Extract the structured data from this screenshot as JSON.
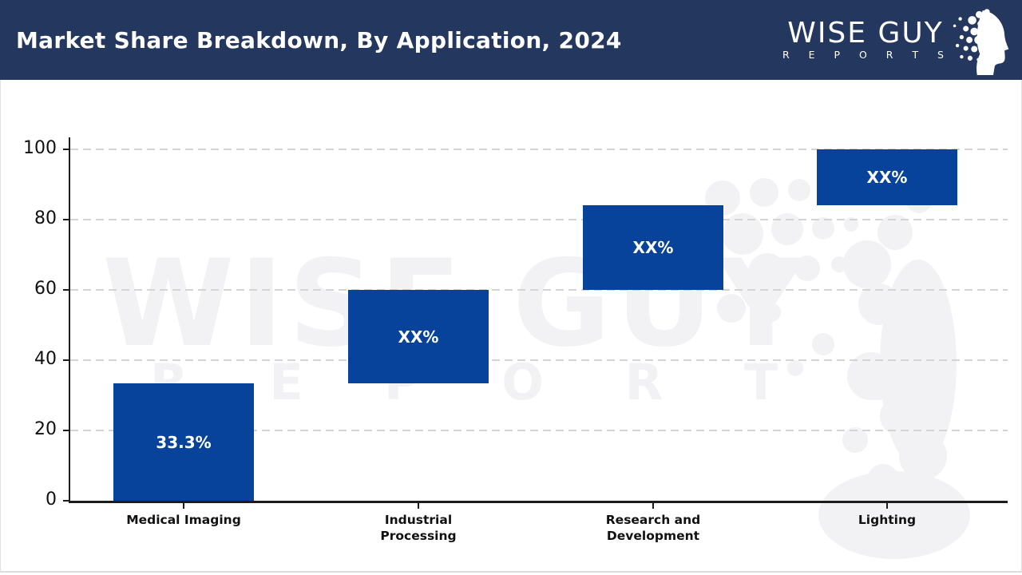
{
  "header": {
    "title": "Market Share Breakdown, By Application, 2024",
    "bg_color": "#23375f",
    "logo": {
      "line1": "WISE GUY",
      "line2": "R E P O R T S"
    }
  },
  "watermark": {
    "line1": "WISE GUY",
    "line2": "R E P O R T S"
  },
  "chart_data": {
    "type": "bar",
    "subtype": "waterfall",
    "title": "Market Share Breakdown, By Application, 2024",
    "categories": [
      "Medical Imaging",
      "Industrial\nProcessing",
      "Research and\nDevelopment",
      "Lighting"
    ],
    "bars": [
      {
        "category": "Medical Imaging",
        "start": 0,
        "end": 33.3,
        "label": "33.3%"
      },
      {
        "category": "Industrial Processing",
        "start": 33.3,
        "end": 60,
        "label": "XX%"
      },
      {
        "category": "Research and Development",
        "start": 60,
        "end": 84,
        "label": "XX%"
      },
      {
        "category": "Lighting",
        "start": 84,
        "end": 100,
        "label": "XX%"
      }
    ],
    "yticks": [
      0,
      20,
      40,
      60,
      80,
      100
    ],
    "ylim": [
      0,
      103
    ],
    "xlabel": "",
    "ylabel": "",
    "grid": "horizontal-dashed",
    "legend": "none",
    "bar_color": "#08439b",
    "axis_color": "#1c1c1c",
    "gridline_color": "#d4d4d4"
  }
}
